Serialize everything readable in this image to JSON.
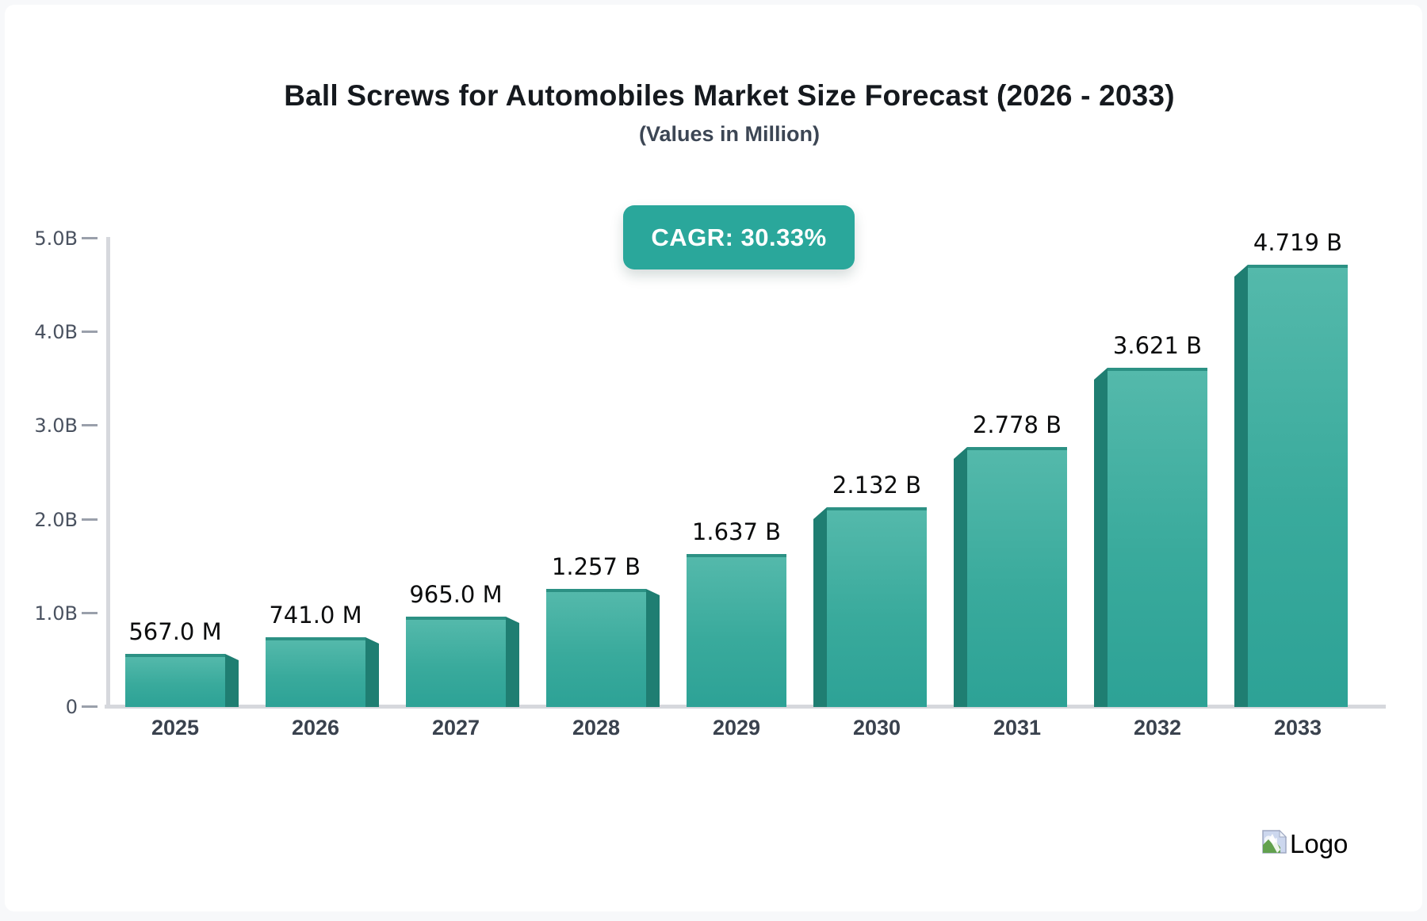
{
  "header": {
    "title": "Ball Screws for Automobiles Market Size Forecast (2026 - 2033)",
    "subtitle": "(Values in Million)",
    "cagr_badge": "CAGR: 30.33%"
  },
  "chart_data": {
    "type": "bar",
    "title": "Ball Screws for Automobiles Market Size Forecast (2026 - 2033)",
    "subtitle": "(Values in Million)",
    "cagr": "30.33%",
    "categories": [
      "2025",
      "2026",
      "2027",
      "2028",
      "2029",
      "2030",
      "2031",
      "2032",
      "2033"
    ],
    "values": [
      0.567,
      0.741,
      0.965,
      1.257,
      1.637,
      2.132,
      2.778,
      3.621,
      4.719
    ],
    "unit": "billions",
    "value_labels": [
      "567.0 M",
      "741.0 M",
      "965.0 M",
      "1.257 B",
      "1.637 B",
      "2.132 B",
      "2.778 B",
      "3.621 B",
      "4.719 B"
    ],
    "y_ticks": [
      "0",
      "1.0B",
      "2.0B",
      "3.0B",
      "4.0B",
      "5.0B"
    ],
    "ylim": [
      0,
      5
    ],
    "grid": false,
    "legend": "none",
    "bar_color_top": "#54b9ab",
    "bar_color_bottom": "#2da296",
    "bar_side_color": "#1f7e72",
    "bar_top_edge_color": "#2c9184",
    "axis_color": "#d6d8dd",
    "tick_label_color": "#4a5260",
    "category_label_color": "#3a424e",
    "badge_color": "#2aa79b"
  },
  "footer": {
    "logo_text": "Logo"
  }
}
